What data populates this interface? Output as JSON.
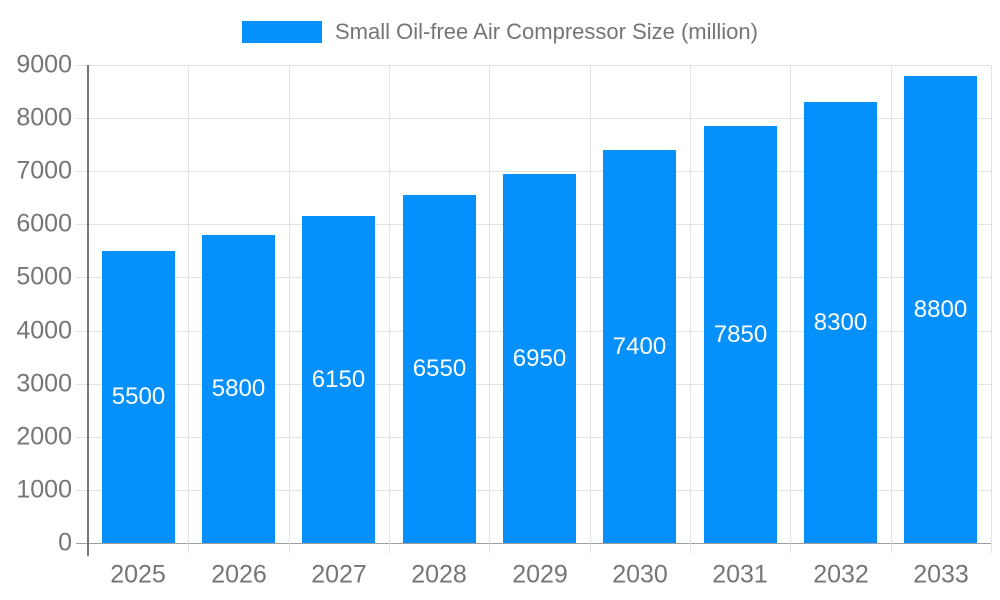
{
  "legend": {
    "label": "Small Oil-free Air Compressor Size (million)"
  },
  "chart_data": {
    "type": "bar",
    "title": "",
    "xlabel": "",
    "ylabel": "",
    "categories": [
      "2025",
      "2026",
      "2027",
      "2028",
      "2029",
      "2030",
      "2031",
      "2032",
      "2033"
    ],
    "series": [
      {
        "name": "Small Oil-free Air Compressor Size (million)",
        "values": [
          5500,
          5800,
          6150,
          6550,
          6950,
          7400,
          7850,
          8300,
          8800
        ]
      }
    ],
    "bar_labels": [
      "5500",
      "5800",
      "6150",
      "6550",
      "6950",
      "7400",
      "7850",
      "8300",
      "8800"
    ],
    "ylim": [
      0,
      9000
    ],
    "ytick_step": 1000,
    "ytick_labels": [
      "0",
      "1000",
      "2000",
      "3000",
      "4000",
      "5000",
      "6000",
      "7000",
      "8000",
      "9000"
    ],
    "grid": true,
    "legend_position": "top",
    "colors": {
      "bar": "#0590fc",
      "bar_label": "#ffffff",
      "axis_text": "#757575",
      "gridline": "#e3e3e3",
      "baseline": "#9e9e9e",
      "axis_line": "#757575",
      "background": "#ffffff"
    }
  }
}
